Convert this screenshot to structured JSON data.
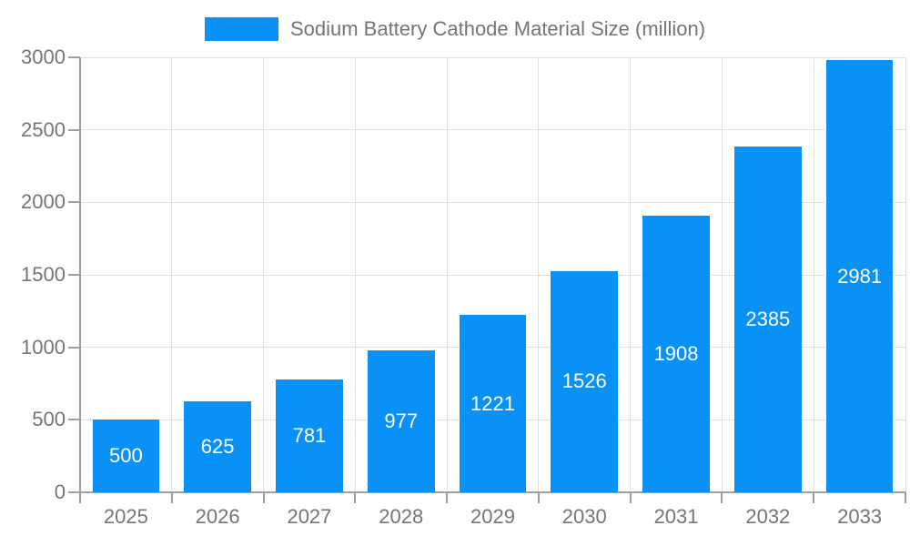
{
  "chart_data": {
    "type": "bar",
    "title": "Sodium Battery Cathode Material Size (million)",
    "legend": {
      "position": "top",
      "entries": [
        "Sodium Battery Cathode Material Size (million)"
      ]
    },
    "categories": [
      "2025",
      "2026",
      "2027",
      "2028",
      "2029",
      "2030",
      "2031",
      "2032",
      "2033"
    ],
    "values": [
      500,
      625,
      781,
      977,
      1221,
      1526,
      1908,
      2385,
      2981
    ],
    "value_labels": [
      "500",
      "625",
      "781",
      "977",
      "1221",
      "1526",
      "1908",
      "2385",
      "2981"
    ],
    "xlabel": "",
    "ylabel": "",
    "ylim": [
      0,
      3000
    ],
    "y_ticks": [
      0,
      500,
      1000,
      1500,
      2000,
      2500,
      3000
    ],
    "y_tick_labels": [
      "0",
      "500",
      "1000",
      "1500",
      "2000",
      "2500",
      "3000"
    ],
    "grid": true,
    "colors": {
      "bar": "#0a91f7",
      "grid": "#e0e0e0",
      "axis": "#9e9e9e",
      "tick_text": "#757575",
      "value_text": "#ffffff",
      "background": "#ffffff"
    }
  }
}
